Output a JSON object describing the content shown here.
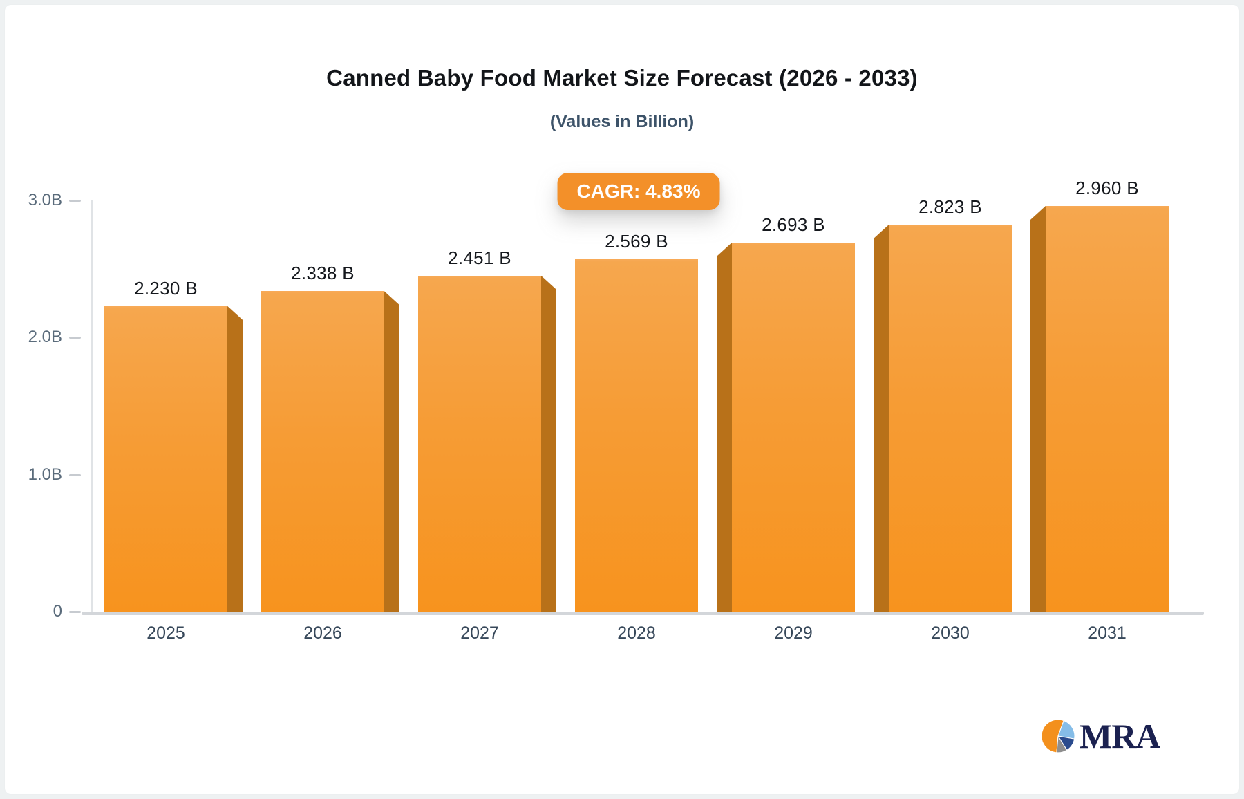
{
  "header": {
    "title": "Canned Baby Food Market Size Forecast (2026 - 2033)",
    "subtitle": "(Values in Billion)"
  },
  "badge": {
    "label": "CAGR: 4.83%"
  },
  "logo": {
    "text": "MRA"
  },
  "chart_data": {
    "type": "bar",
    "title": "Canned Baby Food Market Size Forecast (2026 - 2033)",
    "subtitle": "(Values in Billion)",
    "categories": [
      "2025",
      "2026",
      "2027",
      "2028",
      "2029",
      "2030",
      "2031"
    ],
    "values": [
      2.23,
      2.338,
      2.451,
      2.569,
      2.693,
      2.823,
      2.96
    ],
    "value_labels": [
      "2.230 B",
      "2.338 B",
      "2.451 B",
      "2.569 B",
      "2.693 B",
      "2.823 B",
      "2.960 B"
    ],
    "cagr": "4.83%",
    "xlabel": "",
    "ylabel": "",
    "ylim": [
      0,
      3.0
    ],
    "y_ticks": [
      {
        "value": 3.0,
        "label": "3.0B"
      },
      {
        "value": 2.0,
        "label": "2.0B"
      },
      {
        "value": 1.0,
        "label": "1.0B"
      },
      {
        "value": 0.0,
        "label": "0"
      }
    ],
    "grid": false,
    "legend": false,
    "colors": {
      "bar_face_top": "#f6a74e",
      "bar_face_mid": "#f69c35",
      "bar_face_bottom": "#f7931e",
      "bar_top_edge": "#f8ab58",
      "bar_side": "#b87119",
      "badge_bg": "#f39029",
      "baseline": "#d3d6da",
      "axis_line": "#e0e3e6",
      "tick": "#c7cbd0",
      "y_label": "#5a6b7b",
      "x_label": "#37485a",
      "value_label": "#15181d",
      "logo_orange": "#f3901d",
      "logo_lightblue": "#85bde8",
      "logo_navy": "#2a4b8d",
      "logo_gray": "#8e8e8e",
      "logo_text": "#1b2150"
    }
  }
}
